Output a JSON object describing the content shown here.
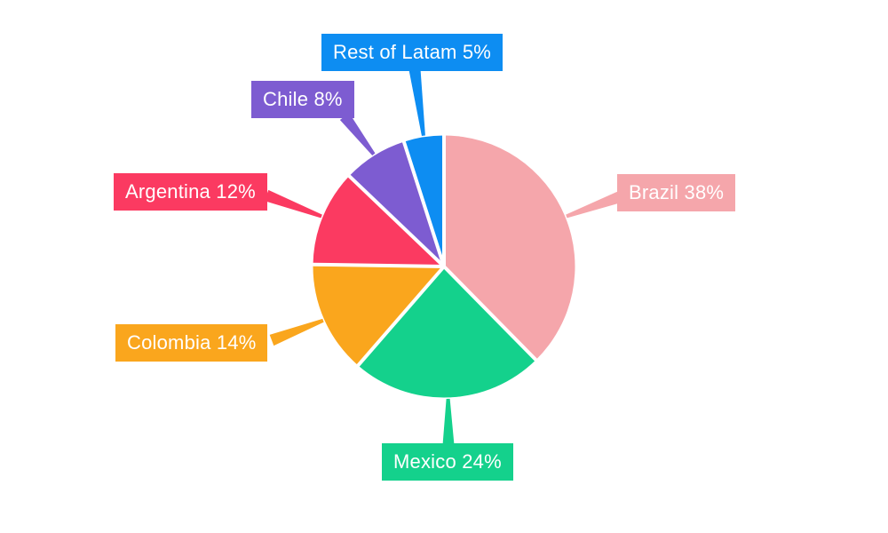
{
  "chart_data": {
    "type": "pie",
    "title": "",
    "categories": [
      "Brazil",
      "Mexico",
      "Colombia",
      "Argentina",
      "Chile",
      "Rest of Latam"
    ],
    "values": [
      38,
      24,
      14,
      12,
      8,
      5
    ],
    "labels": [
      "Brazil 38%",
      "Mexico 24%",
      "Colombia 14%",
      "Argentina 12%",
      "Chile 8%",
      "Rest of Latam 5%"
    ],
    "colors": [
      "#F5A6AB",
      "#14D18C",
      "#FAA61D",
      "#FB3A61",
      "#7D5CD1",
      "#0D8DF2"
    ],
    "unit": "%",
    "start_angle_deg": 0,
    "direction": "clockwise",
    "background_color": "#ffffff",
    "label_text_color": "#ffffff",
    "legend_position": "callout-labels",
    "slice_separator_color": "#ffffff"
  }
}
